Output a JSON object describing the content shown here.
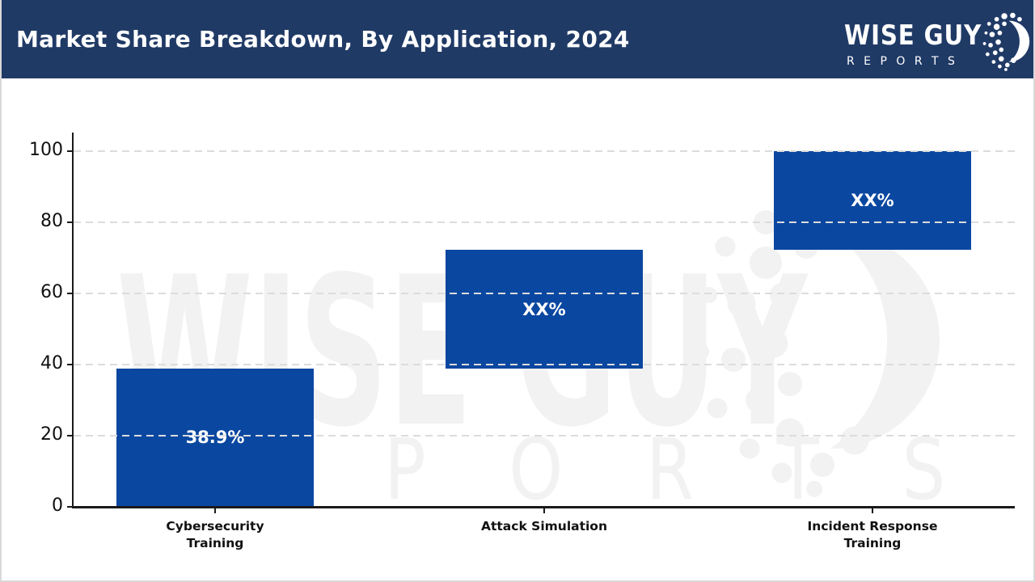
{
  "header": {
    "title": "Market Share Breakdown, By Application, 2024",
    "logo": {
      "line1": "WISE GUY",
      "line2": "R E P O R T S"
    }
  },
  "watermark": {
    "line1": "WISE GUY",
    "line2": "R E P O R T S"
  },
  "chart_data": {
    "type": "bar",
    "subtype": "floating-step-bars",
    "title": "Market Share Breakdown, By Application, 2024",
    "categories": [
      "Cybersecurity\nTraining",
      "Attack Simulation",
      "Incident Response\nTraining"
    ],
    "series": [
      {
        "name": "Market share (%)",
        "segments": [
          {
            "category": "Cybersecurity Training",
            "from": 0,
            "to": 38.9,
            "label": "38.9%"
          },
          {
            "category": "Attack Simulation",
            "from": 38.9,
            "to": 72.2,
            "label": "XX%"
          },
          {
            "category": "Incident Response Training",
            "from": 72.2,
            "to": 100,
            "label": "XX%"
          }
        ]
      }
    ],
    "xlabel": "",
    "ylabel": "",
    "ylim": [
      0,
      100
    ],
    "yticks": [
      0,
      20,
      40,
      60,
      80,
      100
    ],
    "grid": {
      "horizontal": true,
      "style": "dashed",
      "over_bars": true
    },
    "legend": "none",
    "colors": {
      "bar": "#0a47a0",
      "bar_label": "#ffffff",
      "grid": "#dcdcdc",
      "axis": "#1a1a1a",
      "header_bg": "#203a66",
      "watermark": "#f2f2f2",
      "tick_text": "#111111",
      "frame_border": "#d9d9d9"
    }
  }
}
